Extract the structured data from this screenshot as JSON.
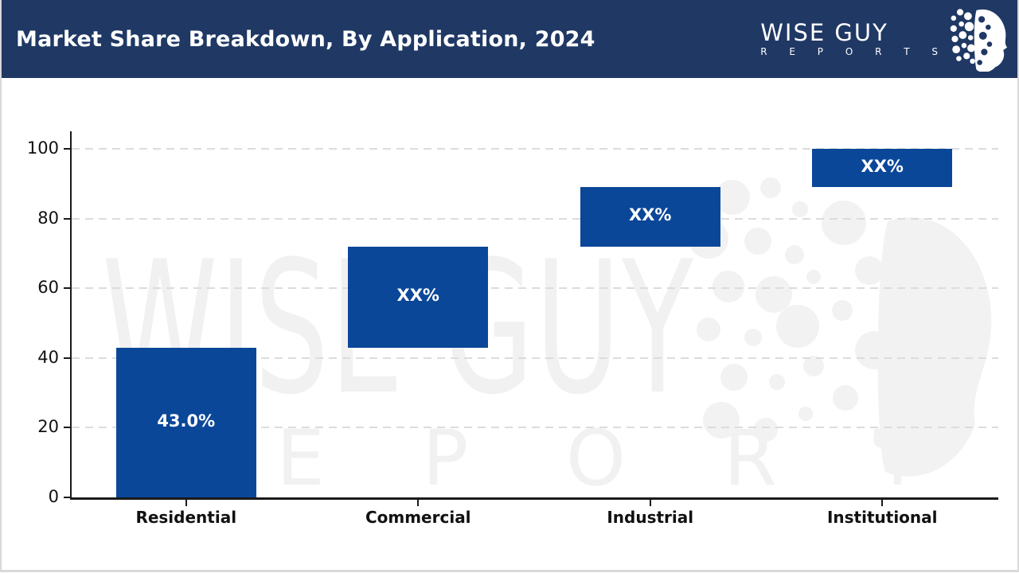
{
  "header": {
    "title": "Market Share Breakdown, By Application, 2024",
    "logo": {
      "line1": "WISE GUY",
      "line2": "R E P O R T S"
    }
  },
  "watermark": {
    "line1": "WISE GUY",
    "line2": "R E P O R T S"
  },
  "colors": {
    "header_bg": "#1f3864",
    "bar_fill": "#0b4799",
    "bar_label_text": "#ffffff",
    "gridline": "#dcdcdc",
    "axis": "#1a1a1a",
    "watermark": "#f1f1f1"
  },
  "chart_data": {
    "type": "bar",
    "subtype": "waterfall",
    "title": "Market Share Breakdown, By Application, 2024",
    "categories": [
      "Residential",
      "Commercial",
      "Industrial",
      "Institutional"
    ],
    "segments": [
      {
        "category": "Residential",
        "start": 0,
        "end": 43,
        "label": "43.0%"
      },
      {
        "category": "Commercial",
        "start": 43,
        "end": 72,
        "label": "XX%"
      },
      {
        "category": "Industrial",
        "start": 72,
        "end": 89,
        "label": "XX%"
      },
      {
        "category": "Institutional",
        "start": 89,
        "end": 100,
        "label": "XX%"
      }
    ],
    "xlabel": "",
    "ylabel": "",
    "ylim": [
      0,
      105
    ],
    "yticks": [
      0,
      20,
      40,
      60,
      80,
      100
    ],
    "grid": "horizontal-dashed",
    "legend": "none"
  }
}
